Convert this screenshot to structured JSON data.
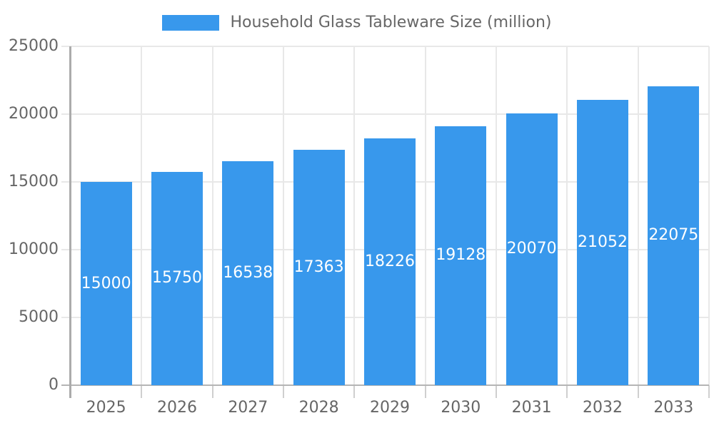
{
  "chart_data": {
    "type": "bar",
    "title": "Household Glass Tableware Size (million)",
    "legend": {
      "label": "Household Glass Tableware Size (million)",
      "position": "top"
    },
    "categories": [
      "2025",
      "2026",
      "2027",
      "2028",
      "2029",
      "2030",
      "2031",
      "2032",
      "2033"
    ],
    "series": [
      {
        "name": "Household Glass Tableware Size (million)",
        "values": [
          15000,
          15750,
          16538,
          17363,
          18226,
          19128,
          20070,
          21052,
          22075
        ]
      }
    ],
    "data_labels": {
      "show": true,
      "position": "center-of-bar",
      "color": "#ffffff"
    },
    "xlabel": "",
    "ylabel": "",
    "ylim": [
      0,
      25000
    ],
    "yticks": [
      0,
      5000,
      10000,
      15000,
      20000,
      25000
    ],
    "grid": true,
    "colors": {
      "bar": "#3898EC",
      "bar_label_text": "#ffffff",
      "axis_text": "#666666",
      "gridline": "#E8E8E8",
      "axis_line": "#ABABAB",
      "baseline": "#B5B5B5",
      "tick": "#CFCFCF"
    }
  }
}
